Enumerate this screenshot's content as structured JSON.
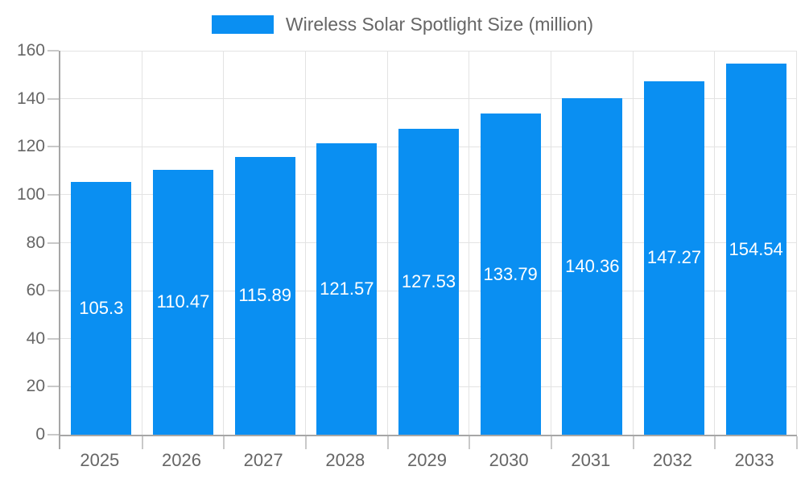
{
  "chart_data": {
    "type": "bar",
    "title": "",
    "series_name": "Wireless Solar Spotlight Size (million)",
    "categories": [
      "2025",
      "2026",
      "2027",
      "2028",
      "2029",
      "2030",
      "2031",
      "2032",
      "2033"
    ],
    "values": [
      105.3,
      110.47,
      115.89,
      121.57,
      127.53,
      133.79,
      140.36,
      147.27,
      154.54
    ],
    "value_labels": [
      "105.3",
      "110.47",
      "115.89",
      "121.57",
      "127.53",
      "133.79",
      "140.36",
      "147.27",
      "154.54"
    ],
    "xlabel": "",
    "ylabel": "",
    "ylim": [
      0,
      160
    ],
    "yticks": [
      0,
      20,
      40,
      60,
      80,
      100,
      120,
      140,
      160
    ],
    "grid": true,
    "legend_position": "top-center",
    "bar_color": "#0a8ff2",
    "bar_label_color": "#ffffff",
    "axis_text_color": "#666666",
    "grid_color": "#e3e3e3",
    "axis_line_color": "#a6a6a6",
    "tick_color": "#c9c9c9",
    "background": "#ffffff"
  }
}
